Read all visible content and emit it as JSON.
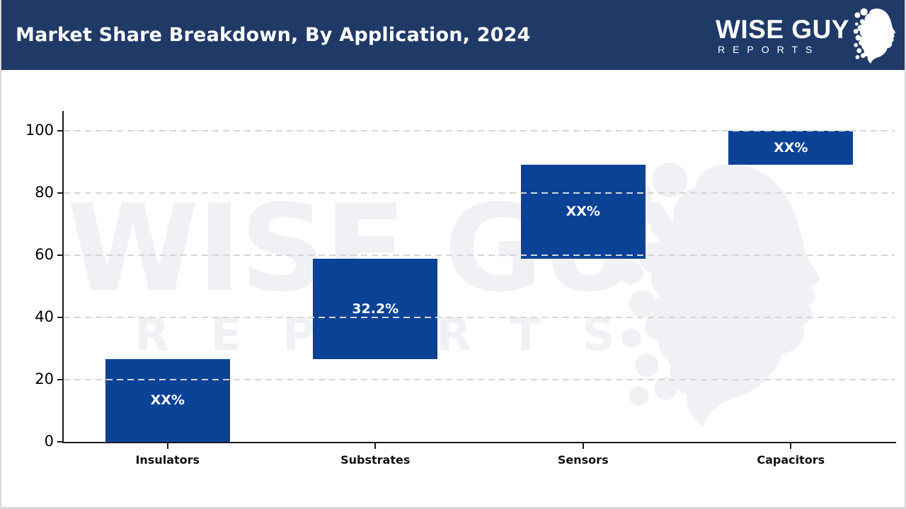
{
  "header": {
    "title": "Market Share Breakdown, By Application, 2024",
    "bg_color": "#203a68",
    "logo": {
      "line1": "WISE GUY",
      "line2": "REPORTS"
    }
  },
  "watermark": {
    "line1": "WISE GUY",
    "line2": "REPORTS"
  },
  "chart_data": {
    "type": "bar",
    "subtype": "waterfall",
    "title": "Market Share Breakdown, By Application, 2024",
    "categories": [
      "Insulators",
      "Substrates",
      "Sensors",
      "Capacitors"
    ],
    "bars": [
      {
        "category": "Insulators",
        "start": 0,
        "end": 26.6,
        "label": "XX%"
      },
      {
        "category": "Substrates",
        "start": 26.6,
        "end": 58.8,
        "label": "32.2%"
      },
      {
        "category": "Sensors",
        "start": 58.8,
        "end": 89.2,
        "label": "XX%"
      },
      {
        "category": "Capacitors",
        "start": 89.2,
        "end": 100,
        "label": "XX%"
      }
    ],
    "yticks": [
      0,
      20,
      40,
      60,
      80,
      100
    ],
    "ylim": [
      0,
      106
    ],
    "bar_color": "#0a4296",
    "grid": true,
    "gridline_style": "dashed",
    "gridline_color": "#d6d6d6",
    "xlabel": "",
    "ylabel": ""
  }
}
